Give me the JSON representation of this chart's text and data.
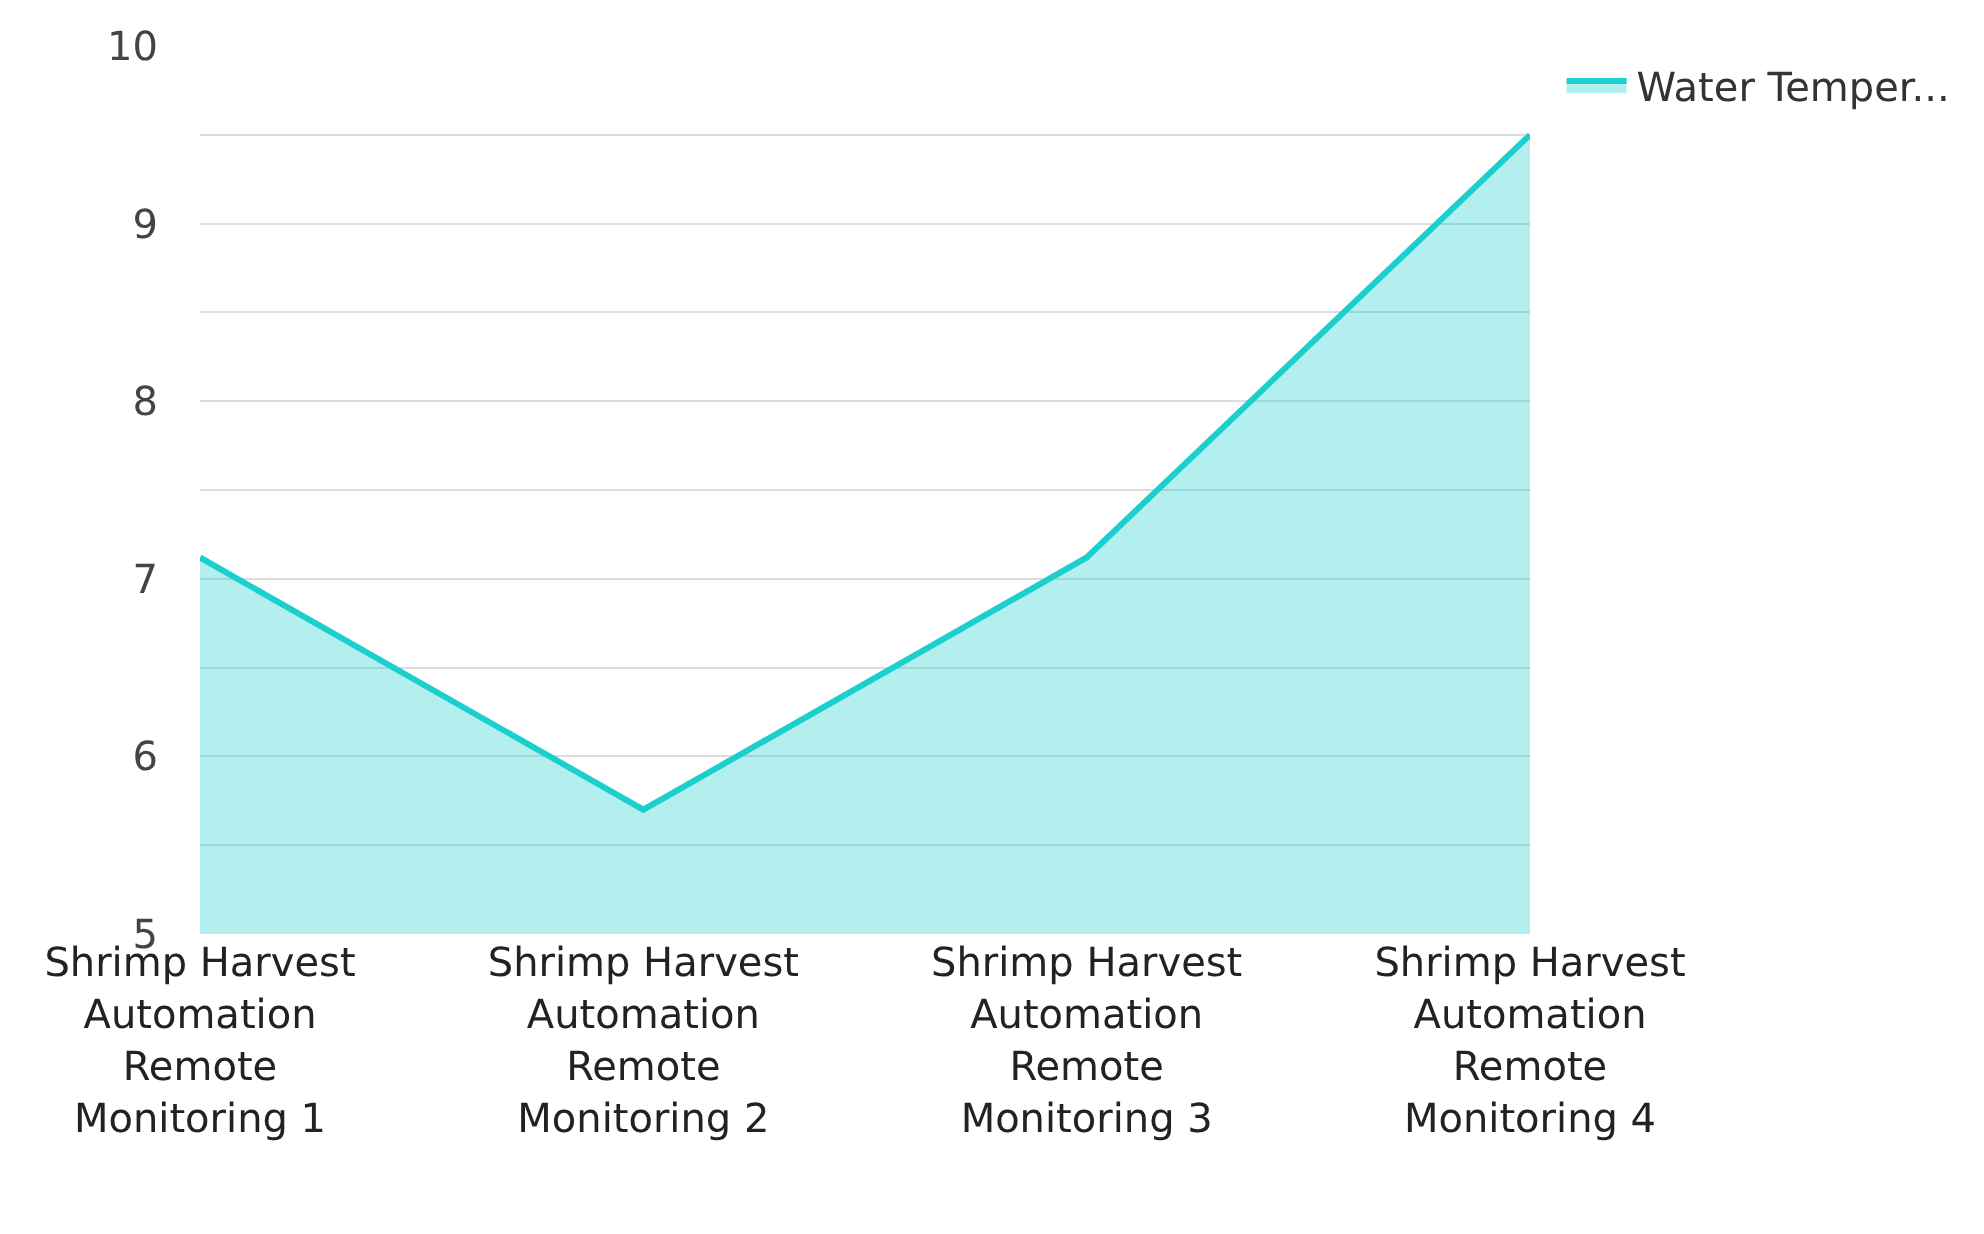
{
  "chart_data": {
    "type": "area",
    "categories": [
      "Shrimp Harvest Automation Remote Monitoring 1",
      "Shrimp Harvest Automation Remote Monitoring 2",
      "Shrimp Harvest Automation Remote Monitoring 3",
      "Shrimp Harvest Automation Remote Monitoring 4"
    ],
    "series": [
      {
        "name": "Water Temper...",
        "color": "#1ccfcf",
        "values": [
          7.12,
          5.7,
          7.12,
          9.5
        ]
      }
    ],
    "ylim": [
      5,
      10
    ],
    "yticks": [
      5,
      {
        "value": 5.5,
        "label": null
      },
      6,
      {
        "value": 6.5,
        "label": null
      },
      7,
      {
        "value": 7.5,
        "label": null
      },
      8,
      {
        "value": 8.5,
        "label": null
      },
      9,
      {
        "value": 9.5,
        "label": null
      },
      10
    ],
    "grid": "y",
    "legend": "top right"
  }
}
